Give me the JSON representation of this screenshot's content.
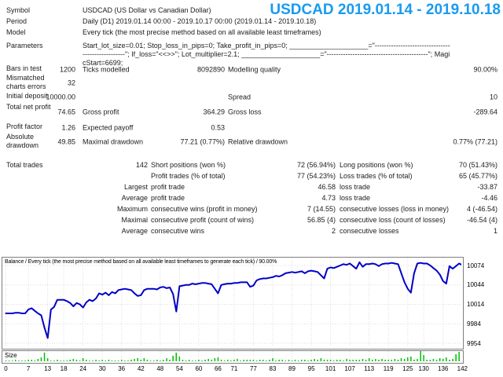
{
  "title": "USDCAD 2019.01.14 - 2019.10.18",
  "colors": {
    "title": "#189BF0",
    "balance_line": "#0000C8",
    "size_bars": "#00BE00",
    "grid": "#DBDBDB",
    "panel_border": "#7F7F7F",
    "text": "#1C1C1C"
  },
  "report": {
    "wide_rows": [
      {
        "label": "Symbol",
        "text": "USDCAD (US Dollar vs Canadian Dollar)"
      },
      {
        "label": "Period",
        "text": "Daily (D1) 2019.01.14 00:00 - 2019.10.17 00:00 (2019.01.14 - 2019.10.18)"
      },
      {
        "label": "Model",
        "text": "Every tick (the most precise method based on all available least timeframes)"
      },
      {
        "label": "Parameters",
        "text": "Start_lot_size=0.01; Stop_loss_in_pips=0; Take_profit_in_pips=0; ____________________=\"--------------------------------------------------\"; If_loss=\"<<>>\"; Lot_multiplier=2.1; ____________________=\"-------------------------------------------\"; MagicStart=6699;"
      }
    ],
    "info_rows": [
      {
        "c1": "Bars in test",
        "v1": "1200",
        "c2": "Ticks modelled",
        "v2": "8092890",
        "c3": "Modelling quality",
        "v3": "90.00%"
      },
      {
        "c1": "Mismatched charts errors",
        "v1": "32",
        "c2": "",
        "v2": "",
        "c3": "",
        "v3": ""
      },
      {
        "c1": "Initial deposit",
        "v1": "10000.00",
        "c2": "",
        "v2": "",
        "c3": "Spread",
        "v3": "10"
      },
      {
        "c1": "Total net profit",
        "v1": "74.65",
        "c2": "Gross profit",
        "v2": "364.29",
        "c3": "Gross loss",
        "v3": "-289.64"
      },
      {
        "c1": "Profit factor",
        "v1": "1.26",
        "c2": "Expected payoff",
        "v2": "0.53",
        "c3": "",
        "v3": ""
      },
      {
        "c1": "Absolute drawdown",
        "v1": "49.85",
        "c2": "Maximal drawdown",
        "v2": "77.21 (0.77%)",
        "c3": "Relative drawdown",
        "v3": "0.77% (77.21)"
      }
    ],
    "stat_rows": [
      {
        "c1": "Total trades",
        "v1": "142",
        "c2": "Short positions (won %)",
        "v2": "72 (56.94%)",
        "c3": "Long positions (won %)",
        "v3": "70 (51.43%)"
      },
      {
        "c1": "",
        "v1": "",
        "c2": "Profit trades (% of total)",
        "v2": "77 (54.23%)",
        "c3": "Loss trades (% of total)",
        "v3": "65 (45.77%)"
      },
      {
        "c1": "",
        "v1": "Largest",
        "c2": "profit trade",
        "v2": "46.58",
        "c3": "loss trade",
        "v3": "-33.87"
      },
      {
        "c1": "",
        "v1": "Average",
        "c2": "profit trade",
        "v2": "4.73",
        "c3": "loss trade",
        "v3": "-4.46"
      },
      {
        "c1": "",
        "v1": "Maximum",
        "c2": "consecutive wins (profit in money)",
        "v2": "7 (14.55)",
        "c3": "consecutive losses (loss in money)",
        "v3": "4 (-46.54)"
      },
      {
        "c1": "",
        "v1": "Maximal",
        "c2": "consecutive profit (count of wins)",
        "v2": "56.85 (4)",
        "c3": "consecutive loss (count of losses)",
        "v3": "-46.54 (4)"
      },
      {
        "c1": "",
        "v1": "Average",
        "c2": "consecutive wins",
        "v2": "2",
        "c3": "consecutive losses",
        "v3": "1"
      }
    ]
  },
  "chart_data": {
    "type": "line",
    "title": "Balance / Every tick (the most precise method based on all available least timeframes to generate each tick) / 90.00%",
    "size_label": "Size",
    "xlabel": "",
    "ylabel": "",
    "grid": true,
    "legend_position": "none",
    "xlim": [
      0,
      142
    ],
    "ylim": [
      9944,
      10087
    ],
    "y_ticks": [
      10074,
      10044,
      10014,
      9984,
      9954
    ],
    "x_ticks": [
      0,
      7,
      13,
      18,
      24,
      30,
      36,
      42,
      48,
      54,
      60,
      66,
      71,
      77,
      83,
      89,
      95,
      101,
      107,
      113,
      119,
      125,
      130,
      136,
      142
    ],
    "series": [
      {
        "name": "Balance",
        "values": [
          10000,
          10000,
          10000,
          10001,
          10001,
          10000,
          10000,
          10006,
          10008,
          10004,
          10000,
          9997,
          9978,
          9962,
          10006,
          10010,
          10021,
          10021,
          10021,
          10019,
          10016,
          10011,
          10016,
          10014,
          10009,
          10017,
          10021,
          10019,
          10023,
          10031,
          10029,
          10032,
          10028,
          10033,
          10031,
          10036,
          10037,
          10038,
          10037,
          10036,
          10031,
          10027,
          10028,
          10036,
          10038,
          10038,
          10038,
          10037,
          10040,
          10041,
          10039,
          10040,
          10030,
          10003,
          10042,
          10043,
          10044,
          10044,
          10046,
          10045,
          10046,
          10047,
          10047,
          10046,
          10045,
          10038,
          10031,
          10044,
          10045,
          10046,
          10046,
          10047,
          10047,
          10048,
          10048,
          10048,
          10041,
          10043,
          10051,
          10053,
          10054,
          10054,
          10055,
          10056,
          10058,
          10057,
          10059,
          10062,
          10063,
          10064,
          10063,
          10064,
          10065,
          10062,
          10065,
          10066,
          10065,
          10064,
          10059,
          10054,
          10069,
          10071,
          10070,
          10072,
          10074,
          10076,
          10075,
          10077,
          10073,
          10069,
          10079,
          10072,
          10076,
          10076,
          10077,
          10076,
          10073,
          10076,
          10077,
          10077,
          10078,
          10077,
          10076,
          10062,
          10048,
          10038,
          10032,
          10062,
          10077,
          10078,
          10077,
          10077,
          10074,
          10070,
          10066,
          10060,
          10050,
          10046,
          10073,
          10069,
          10073,
          10077,
          10074.65
        ]
      }
    ],
    "size_bars": {
      "name": "Size",
      "values": [
        1,
        1,
        1,
        2,
        1,
        1,
        1,
        2,
        2,
        1,
        3,
        5,
        11,
        4,
        1,
        1,
        2,
        1,
        1,
        1,
        2,
        3,
        2,
        1,
        4,
        2,
        1,
        1,
        2,
        1,
        2,
        1,
        2,
        1,
        1,
        1,
        2,
        1,
        1,
        2,
        3,
        4,
        2,
        4,
        2,
        1,
        1,
        2,
        1,
        2,
        4,
        2,
        7,
        11,
        6,
        2,
        1,
        2,
        1,
        1,
        2,
        1,
        2,
        3,
        2,
        4,
        5,
        2,
        1,
        2,
        1,
        2,
        3,
        1,
        2,
        2,
        2,
        2,
        1,
        2,
        2,
        1,
        2,
        4,
        1,
        2,
        2,
        1,
        2,
        1,
        2,
        1,
        2,
        2,
        1,
        2,
        3,
        2,
        4,
        2,
        2,
        2,
        1,
        2,
        2,
        1,
        3,
        2,
        2,
        2,
        2,
        3,
        2,
        4,
        2,
        3,
        2,
        3,
        2,
        2,
        2,
        3,
        2,
        4,
        3,
        5,
        6,
        2,
        3,
        14,
        8,
        2,
        2,
        3,
        2,
        4,
        3,
        5,
        2,
        3,
        9,
        12,
        5
      ]
    }
  }
}
